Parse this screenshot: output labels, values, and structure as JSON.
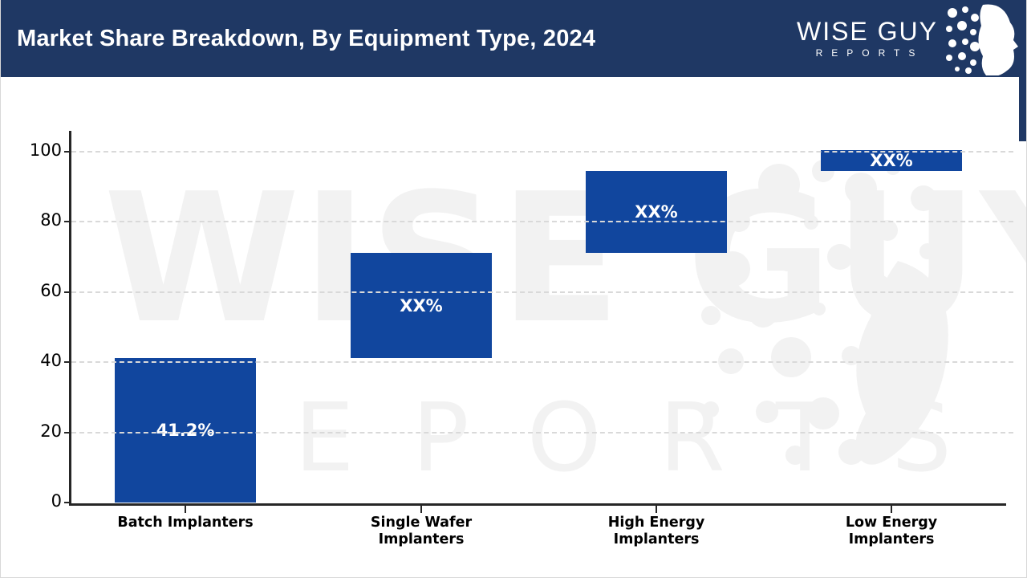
{
  "header": {
    "title": "Market Share Breakdown, By Equipment Type, 2024",
    "logo": {
      "line1": "WISE GUY",
      "line2": "REPORTS"
    }
  },
  "watermark": {
    "line1": "WISE GUY",
    "line2": "REPORTS"
  },
  "colors": {
    "header_navy": "#1f3864",
    "bar_blue": "#11469e",
    "grid_gray": "#d9d9d9",
    "axis_black": "#262626",
    "watermark_gray": "#f2f2f2",
    "label_white": "#ffffff"
  },
  "chart_data": {
    "type": "bar",
    "subtype": "waterfall",
    "title": "Market Share Breakdown, By Equipment Type, 2024",
    "categories": [
      "Batch Implanters",
      "Single Wafer Implanters",
      "High Energy Implanters",
      "Low Energy Implanters"
    ],
    "categories_lines": [
      [
        "Batch Implanters"
      ],
      [
        "Single Wafer",
        "Implanters"
      ],
      [
        "High Energy",
        "Implanters"
      ],
      [
        "Low Energy",
        "Implanters"
      ]
    ],
    "y_ticks": [
      0,
      20,
      40,
      60,
      80,
      100
    ],
    "ylim": [
      0,
      105
    ],
    "grid": "horizontal-dashed",
    "legend": "none",
    "series": [
      {
        "name": "Market share (%)",
        "segments": [
          {
            "category": "Batch Implanters",
            "start": 0,
            "end": 41.2,
            "label": "41.2%"
          },
          {
            "category": "Single Wafer Implanters",
            "start": 41.2,
            "end": 71,
            "label": "XX%"
          },
          {
            "category": "High Energy Implanters",
            "start": 71,
            "end": 94.5,
            "label": "XX%"
          },
          {
            "category": "Low Energy Implanters",
            "start": 94.5,
            "end": 100.3,
            "label": "XX%"
          }
        ]
      }
    ]
  }
}
